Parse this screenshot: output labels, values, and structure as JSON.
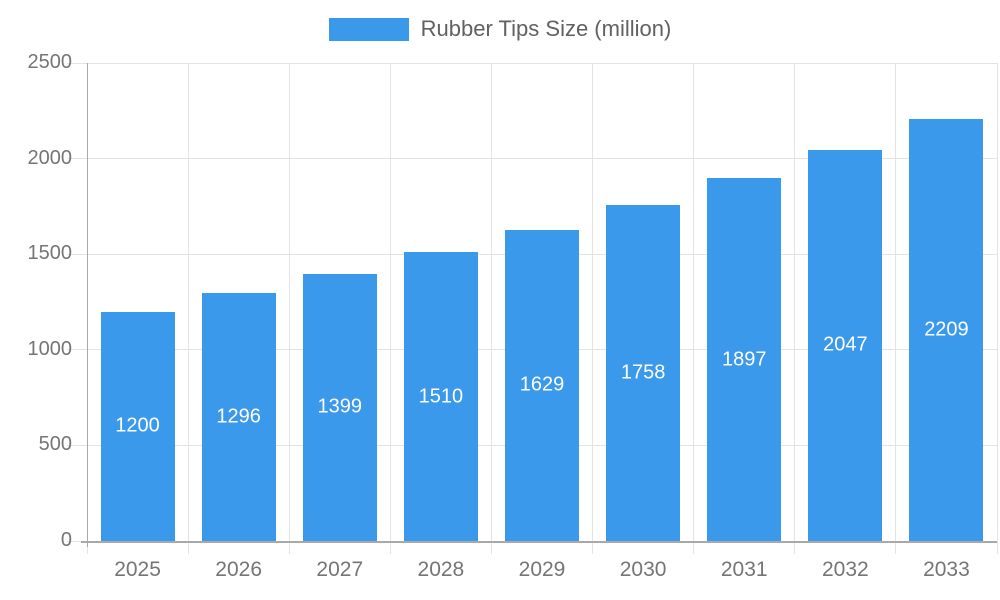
{
  "chart_data": {
    "type": "bar",
    "title": "Rubber Tips Size (million)",
    "legend": [
      "Rubber Tips Size (million)"
    ],
    "legend_position": "top",
    "categories": [
      "2025",
      "2026",
      "2027",
      "2028",
      "2029",
      "2030",
      "2031",
      "2032",
      "2033"
    ],
    "series": [
      {
        "name": "Rubber Tips Size (million)",
        "values": [
          1200,
          1296,
          1399,
          1510,
          1629,
          1758,
          1897,
          2047,
          2209
        ]
      }
    ],
    "bar_labels": [
      "1200",
      "1296",
      "1399",
      "1510",
      "1629",
      "1758",
      "1897",
      "2047",
      "2209"
    ],
    "xlabel": "",
    "ylabel": "",
    "ylim": [
      0,
      2500
    ],
    "yticks": [
      0,
      500,
      1000,
      1500,
      2000,
      2500
    ],
    "grid": true,
    "colors": {
      "bar": "#3B99EC",
      "bar_label_text": "#FFFFFF",
      "axis_text": "#757575",
      "legend_text": "#616161",
      "axis_line": "#A9A9A9",
      "gridline": "#E3E3E3"
    }
  }
}
